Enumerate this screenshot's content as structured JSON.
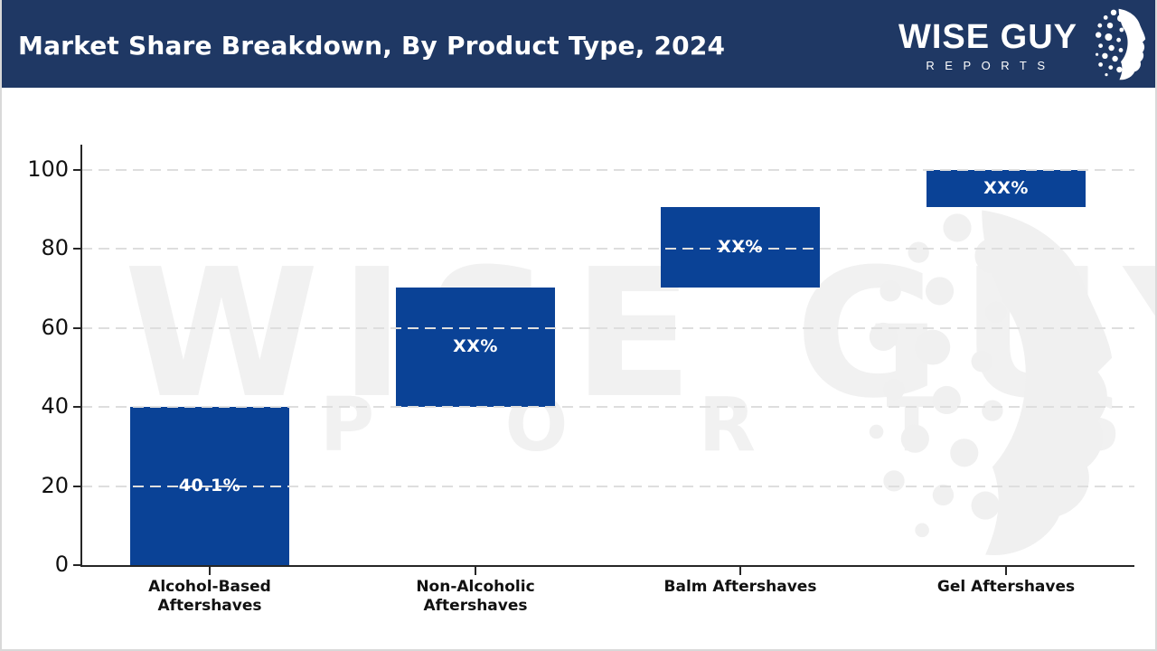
{
  "header": {
    "title": "Market Share Breakdown, By Product Type, 2024",
    "brand": {
      "line1": "WISE GUY",
      "line2": "REPORTS"
    }
  },
  "watermark": {
    "line1": "WISE GUY",
    "line2": "P O R T S"
  },
  "colors": {
    "header_bg": "#1f3864",
    "bar": "#0a4296",
    "bar_label": "#ffffff",
    "gridline": "#dedede",
    "axis": "#262626",
    "watermark": "#f1f1f1"
  },
  "chart_data": {
    "type": "bar",
    "subtype": "waterfall",
    "title": "Market Share Breakdown, By Product Type, 2024",
    "categories": [
      {
        "name": "Alcohol-Based Aftershaves",
        "lines": [
          "Alcohol-Based",
          "Aftershaves"
        ]
      },
      {
        "name": "Non-Alcoholic Aftershaves",
        "lines": [
          "Non-Alcoholic",
          "Aftershaves"
        ]
      },
      {
        "name": "Balm Aftershaves",
        "lines": [
          "Balm Aftershaves"
        ]
      },
      {
        "name": "Gel Aftershaves",
        "lines": [
          "Gel Aftershaves"
        ]
      }
    ],
    "segments": [
      {
        "category": "Alcohol-Based Aftershaves",
        "start": 0,
        "end": 40.1,
        "label": "40.1%"
      },
      {
        "category": "Non-Alcoholic Aftershaves",
        "start": 40.1,
        "end": 70.1,
        "label": "XX%"
      },
      {
        "category": "Balm Aftershaves",
        "start": 70.1,
        "end": 90.6,
        "label": "XX%"
      },
      {
        "category": "Gel Aftershaves",
        "start": 90.6,
        "end": 100,
        "label": "XX%"
      }
    ],
    "y_ticks": [
      0,
      20,
      40,
      60,
      80,
      100
    ],
    "ylim": [
      0,
      106
    ],
    "xlabel": "",
    "ylabel": "",
    "grid": "dashed-horizontal-over-bars",
    "legend": "none"
  }
}
